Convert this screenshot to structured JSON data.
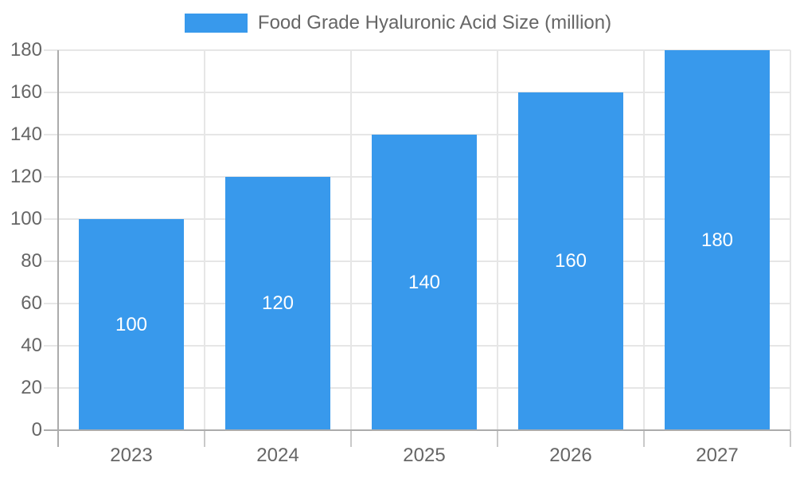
{
  "chart_data": {
    "type": "bar",
    "title": "",
    "series_name": "Food Grade Hyaluronic Acid Size (million)",
    "categories": [
      "2023",
      "2024",
      "2025",
      "2026",
      "2027"
    ],
    "values": [
      100,
      120,
      140,
      160,
      180
    ],
    "value_labels": [
      "100",
      "120",
      "140",
      "160",
      "180"
    ],
    "value_label_position": "inside-center",
    "ylim": [
      0,
      180
    ],
    "yticks": [
      0,
      20,
      40,
      60,
      80,
      100,
      120,
      140,
      160,
      180
    ],
    "grid": true,
    "legend_position": "top-center",
    "colors": {
      "bar": "#3899EC",
      "value_label_text": "#FFFFFF",
      "axis_text": "#666666",
      "grid_line": "#E6E6E6",
      "axis_line": "#ACACAC",
      "tick_mark": "#C9C9C9",
      "background": "#FFFFFF"
    }
  }
}
